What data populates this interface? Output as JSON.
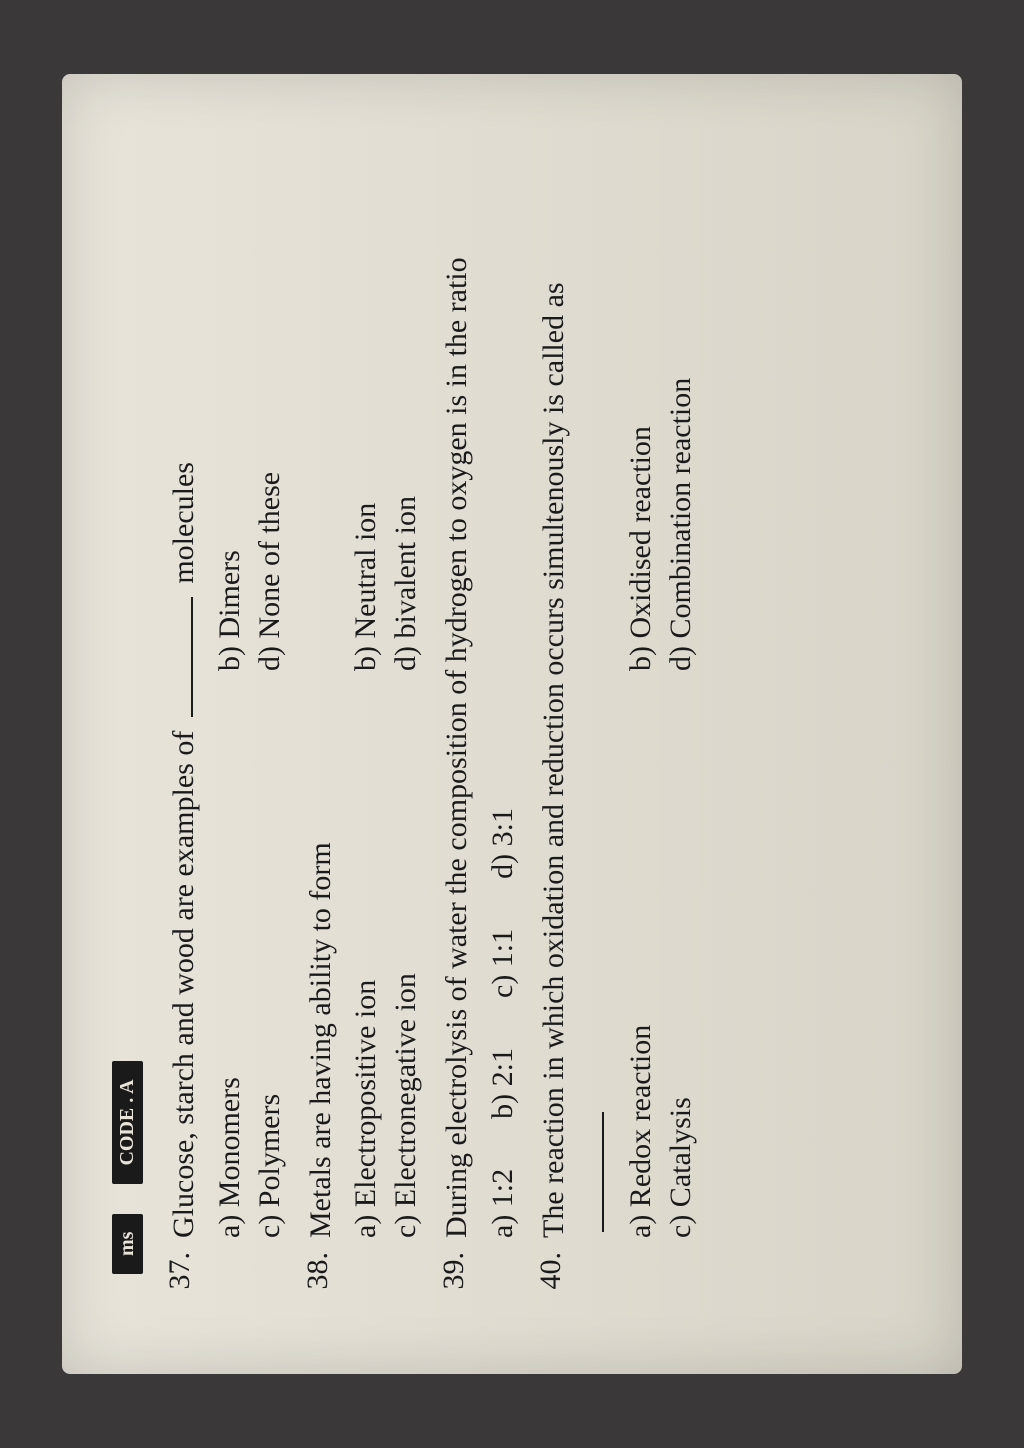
{
  "header": {
    "tag_left": "ms",
    "tag_right": "CODE . A"
  },
  "questions": [
    {
      "number": "37.",
      "text_before": "Glucose, starch and wood are examples of",
      "text_after": "molecules",
      "has_blank": true,
      "layout": "two-col",
      "options": [
        {
          "letter": "a)",
          "text": "Monomers"
        },
        {
          "letter": "b)",
          "text": "Dimers"
        },
        {
          "letter": "c)",
          "text": "Polymers"
        },
        {
          "letter": "d)",
          "text": "None of these"
        }
      ]
    },
    {
      "number": "38.",
      "text_before": "Metals are having ability to form",
      "text_after": "",
      "has_blank": false,
      "layout": "two-col",
      "options": [
        {
          "letter": "a)",
          "text": "Electropositive ion"
        },
        {
          "letter": "b)",
          "text": "Neutral ion"
        },
        {
          "letter": "c)",
          "text": "Electronegative ion"
        },
        {
          "letter": "d)",
          "text": "bivalent ion"
        }
      ]
    },
    {
      "number": "39.",
      "text_before": "During electrolysis of water the composition of hydrogen to oxygen is in the ratio",
      "text_after": "",
      "has_blank": false,
      "layout": "four-col",
      "options": [
        {
          "letter": "a)",
          "text": "1:2"
        },
        {
          "letter": "b)",
          "text": "2:1"
        },
        {
          "letter": "c)",
          "text": "1:1"
        },
        {
          "letter": "d)",
          "text": "3:1"
        }
      ]
    },
    {
      "number": "40.",
      "text_before": "The reaction in which oxidation and reduction occurs simultenously is called as",
      "text_after": "",
      "has_blank": true,
      "blank_after": true,
      "layout": "two-col",
      "options": [
        {
          "letter": "a)",
          "text": "Redox reaction"
        },
        {
          "letter": "b)",
          "text": "Oxidised reaction"
        },
        {
          "letter": "c)",
          "text": "Catalysis"
        },
        {
          "letter": "d)",
          "text": "Combination reaction"
        }
      ]
    }
  ]
}
